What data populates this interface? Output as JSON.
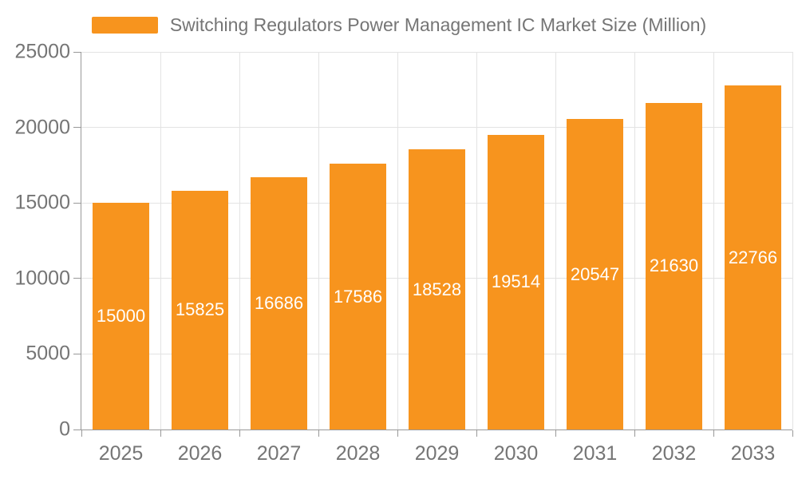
{
  "chart_data": {
    "type": "bar",
    "title": "Switching Regulators Power Management IC Market Size (Million)",
    "legend": [
      "Switching Regulators Power Management IC Market Size (Million)"
    ],
    "legend_position": "top",
    "categories": [
      "2025",
      "2026",
      "2027",
      "2028",
      "2029",
      "2030",
      "2031",
      "2032",
      "2033"
    ],
    "series": [
      {
        "name": "Switching Regulators Power Management IC Market Size (Million)",
        "values": [
          15000,
          15825,
          16686,
          17586,
          18528,
          19514,
          20547,
          21630,
          22766
        ]
      }
    ],
    "data_labels_shown": true,
    "data_label_position": "inside-center",
    "xlabel": "",
    "ylabel": "",
    "ylim": [
      0,
      25000
    ],
    "yticks": [
      0,
      5000,
      10000,
      15000,
      20000,
      25000
    ],
    "grid": true,
    "colors": {
      "bar": "#f7941e",
      "bar_label_text": "#ffffff",
      "axis_text": "#757575",
      "legend_text": "#757575",
      "axis_line": "#999999",
      "gridline": "#e3e3e3",
      "background": "#ffffff"
    }
  }
}
